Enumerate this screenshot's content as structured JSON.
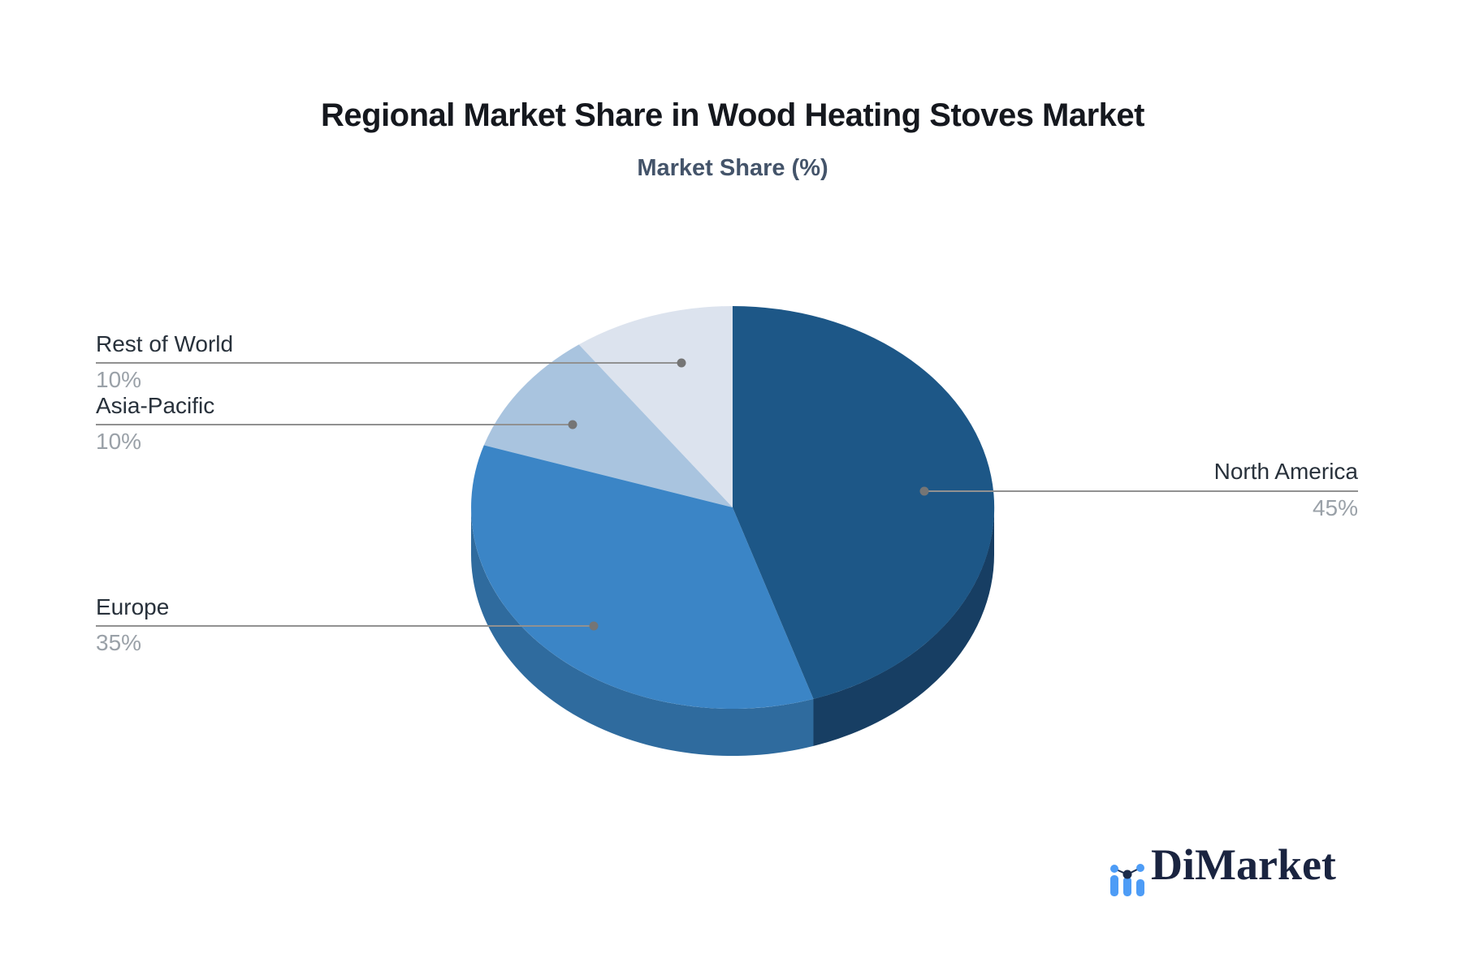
{
  "title": "Regional Market Share in Wood Heating Stoves Market",
  "subtitle": "Market Share (%)",
  "logo": {
    "text": "DiMarket",
    "icon": "bar-line-chart-icon",
    "icon_bar_color": "#4d9cf6",
    "icon_accent_color": "#1c2b4a",
    "text_color": "#1a2440"
  },
  "chart_data": {
    "type": "pie",
    "is_3d": true,
    "title": "Regional Market Share in Wood Heating Stoves Market",
    "subtitle": "Market Share (%)",
    "start_angle_deg": 0,
    "direction": "clockwise",
    "legend": "none",
    "slices": [
      {
        "label": "North America",
        "value": 45,
        "pct_label": "45%",
        "color": "#1d5787",
        "side_color": "#173e63",
        "callout_side": "right"
      },
      {
        "label": "Europe",
        "value": 35,
        "pct_label": "35%",
        "color": "#3b85c6",
        "side_color": "#2f6b9e",
        "callout_side": "left"
      },
      {
        "label": "Asia-Pacific",
        "value": 10,
        "pct_label": "10%",
        "color": "#a9c4df",
        "callout_side": "left"
      },
      {
        "label": "Rest of World",
        "value": 10,
        "pct_label": "10%",
        "color": "#dce3ee",
        "callout_side": "left"
      }
    ],
    "label_color": "#28313b",
    "pct_color": "#9aa1a8",
    "callout_line_color": "#919191",
    "callout_dot_color": "#757575"
  }
}
